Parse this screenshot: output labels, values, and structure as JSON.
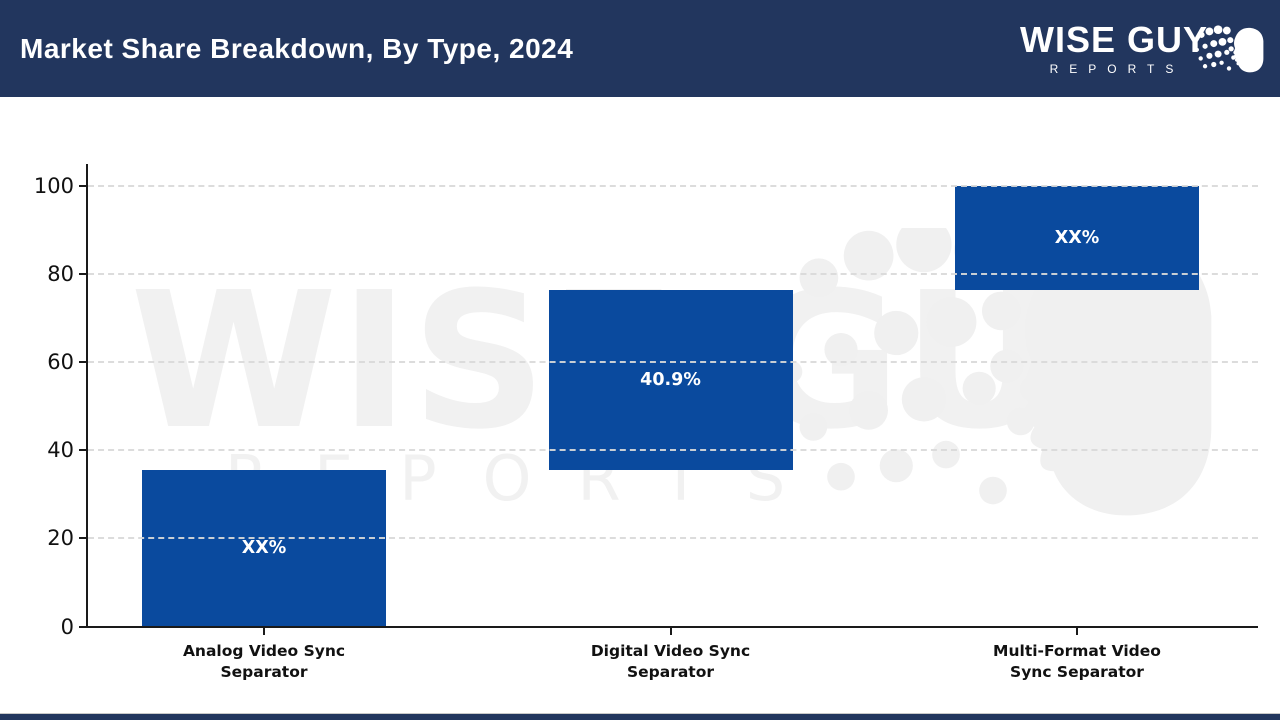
{
  "header": {
    "title": "Market Share Breakdown, By Type, 2024",
    "logo": {
      "line1": "WISE GUY",
      "line2": "REPORTS"
    }
  },
  "watermark": {
    "line1": "WISE GUY",
    "line2": "REPORTS"
  },
  "colors": {
    "header_bg": "#22365e",
    "bar": "#0a4a9e",
    "grid": "#d9d9d9",
    "axis": "#1a1a1a",
    "watermark": "#f1f1f1",
    "bar_label": "#ffffff"
  },
  "chart_data": {
    "type": "bar",
    "variant": "waterfall",
    "title": "Market Share Breakdown, By Type, 2024",
    "categories": [
      "Analog Video Sync Separator",
      "Digital Video Sync Separator",
      "Multi-Format Video Sync Separator"
    ],
    "category_lines": [
      [
        "Analog Video Sync",
        "Separator"
      ],
      [
        "Digital Video Sync",
        "Separator"
      ],
      [
        "Multi-Format Video",
        "Sync Separator"
      ]
    ],
    "segments": [
      {
        "category": "Analog Video Sync Separator",
        "start": 0,
        "end": 35.4,
        "label": "XX%"
      },
      {
        "category": "Digital Video Sync Separator",
        "start": 35.4,
        "end": 76.3,
        "label": "40.9%"
      },
      {
        "category": "Multi-Format Video Sync Separator",
        "start": 76.3,
        "end": 99.8,
        "label": "XX%"
      }
    ],
    "yticks": [
      0,
      20,
      40,
      60,
      80,
      100
    ],
    "ylim": [
      0,
      105
    ],
    "xlabel": "",
    "ylabel": "",
    "grid": {
      "axis": "y",
      "style": "dashed"
    },
    "legend": "none",
    "bar_color": "#0a4a9e"
  }
}
